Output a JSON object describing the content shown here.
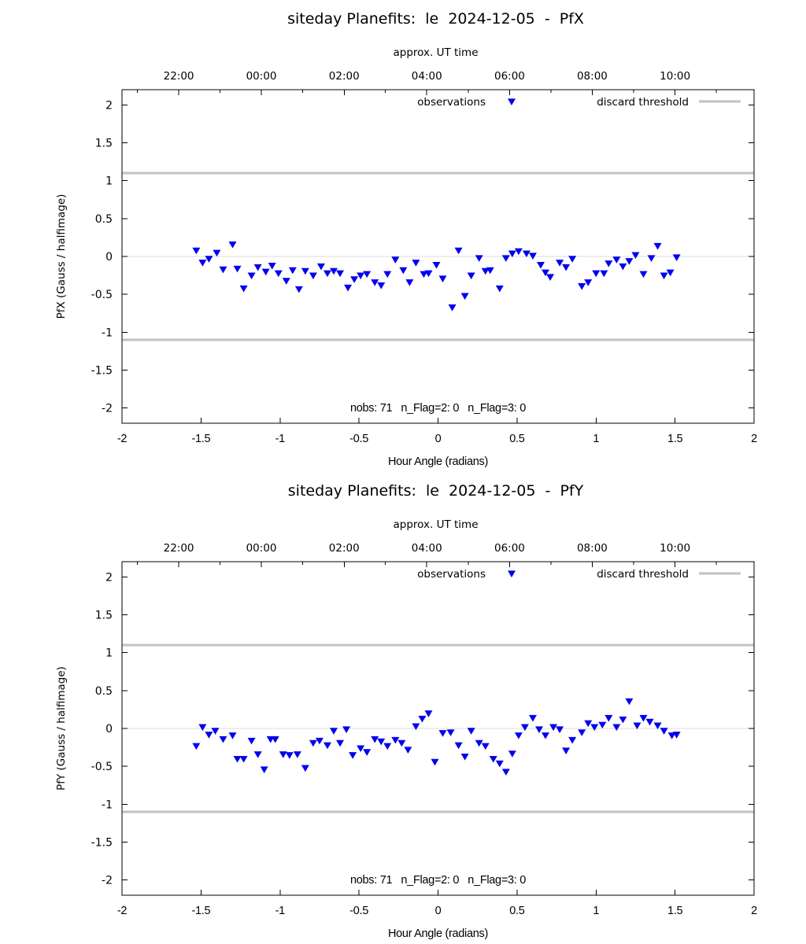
{
  "chart_data": [
    {
      "type": "scatter",
      "title": "siteday Planefits:  le  2024-12-05  -  PfX",
      "top_axis_label": "approx. UT time",
      "xlabel": "Hour Angle (radians)",
      "ylabel": "PfX (Gauss / halfimage)",
      "annotation": "nobs: 71   n_Flag=2: 0   n_Flag=3: 0",
      "legend": [
        {
          "label": "observations",
          "type": "marker"
        },
        {
          "label": "discard threshold",
          "type": "line"
        }
      ],
      "xlim": [
        -2,
        2
      ],
      "ylim": [
        -2.2,
        2.2
      ],
      "xticks": [
        {
          "v": -2,
          "label": "-2"
        },
        {
          "v": -1.5,
          "label": "-1.5"
        },
        {
          "v": -1,
          "label": "-1"
        },
        {
          "v": -0.5,
          "label": "-0.5"
        },
        {
          "v": 0,
          "label": "0"
        },
        {
          "v": 0.5,
          "label": "0.5"
        },
        {
          "v": 1,
          "label": "1"
        },
        {
          "v": 1.5,
          "label": "1.5"
        },
        {
          "v": 2,
          "label": "2"
        }
      ],
      "yticks": [
        {
          "v": 2,
          "label": "2"
        },
        {
          "v": 1.5,
          "label": "1.5"
        },
        {
          "v": 1,
          "label": "1"
        },
        {
          "v": 0.5,
          "label": "0.5"
        },
        {
          "v": 0,
          "label": "0"
        },
        {
          "v": -0.5,
          "label": "-0.5"
        },
        {
          "v": -1,
          "label": "-1"
        },
        {
          "v": -1.5,
          "label": "-1.5"
        },
        {
          "v": -2,
          "label": "-2"
        }
      ],
      "top_ticks": [
        {
          "x": -1.641,
          "label": "22:00"
        },
        {
          "x": -1.118,
          "label": "00:00"
        },
        {
          "x": -0.594,
          "label": "02:00"
        },
        {
          "x": -0.071,
          "label": "04:00"
        },
        {
          "x": 0.453,
          "label": "06:00"
        },
        {
          "x": 0.976,
          "label": "08:00"
        },
        {
          "x": 1.5,
          "label": "10:00"
        }
      ],
      "top_minor_ticks": [
        -1.903,
        -1.38,
        -0.856,
        -0.333,
        0.191,
        0.714,
        1.238,
        1.762
      ],
      "discard_threshold": 1.1,
      "zero_line": 0,
      "marker_color": "#0000ee",
      "threshold_color": "#c2c2c2",
      "zero_line_color": "#dcdcdc",
      "series": [
        {
          "name": "observations",
          "points": [
            [
              -1.53,
              0.08
            ],
            [
              -1.49,
              -0.08
            ],
            [
              -1.45,
              -0.03
            ],
            [
              -1.4,
              0.05
            ],
            [
              -1.36,
              -0.17
            ],
            [
              -1.3,
              0.16
            ],
            [
              -1.27,
              -0.16
            ],
            [
              -1.23,
              -0.42
            ],
            [
              -1.18,
              -0.25
            ],
            [
              -1.14,
              -0.14
            ],
            [
              -1.09,
              -0.2
            ],
            [
              -1.05,
              -0.12
            ],
            [
              -1.01,
              -0.22
            ],
            [
              -0.96,
              -0.32
            ],
            [
              -0.92,
              -0.18
            ],
            [
              -0.88,
              -0.43
            ],
            [
              -0.84,
              -0.19
            ],
            [
              -0.79,
              -0.25
            ],
            [
              -0.74,
              -0.13
            ],
            [
              -0.7,
              -0.22
            ],
            [
              -0.66,
              -0.19
            ],
            [
              -0.62,
              -0.22
            ],
            [
              -0.57,
              -0.41
            ],
            [
              -0.53,
              -0.3
            ],
            [
              -0.49,
              -0.25
            ],
            [
              -0.45,
              -0.23
            ],
            [
              -0.4,
              -0.34
            ],
            [
              -0.36,
              -0.38
            ],
            [
              -0.32,
              -0.23
            ],
            [
              -0.27,
              -0.04
            ],
            [
              -0.22,
              -0.18
            ],
            [
              -0.18,
              -0.34
            ],
            [
              -0.14,
              -0.08
            ],
            [
              -0.09,
              -0.23
            ],
            [
              -0.06,
              -0.22
            ],
            [
              -0.01,
              -0.11
            ],
            [
              0.03,
              -0.29
            ],
            [
              0.09,
              -0.67
            ],
            [
              0.13,
              0.08
            ],
            [
              0.17,
              -0.52
            ],
            [
              0.21,
              -0.25
            ],
            [
              0.26,
              -0.02
            ],
            [
              0.3,
              -0.19
            ],
            [
              0.33,
              -0.18
            ],
            [
              0.39,
              -0.42
            ],
            [
              0.43,
              -0.02
            ],
            [
              0.47,
              0.04
            ],
            [
              0.51,
              0.07
            ],
            [
              0.56,
              0.04
            ],
            [
              0.6,
              0.01
            ],
            [
              0.65,
              -0.11
            ],
            [
              0.68,
              -0.21
            ],
            [
              0.71,
              -0.27
            ],
            [
              0.77,
              -0.08
            ],
            [
              0.81,
              -0.14
            ],
            [
              0.85,
              -0.03
            ],
            [
              0.91,
              -0.39
            ],
            [
              0.95,
              -0.34
            ],
            [
              1.0,
              -0.22
            ],
            [
              1.05,
              -0.22
            ],
            [
              1.08,
              -0.09
            ],
            [
              1.13,
              -0.04
            ],
            [
              1.17,
              -0.13
            ],
            [
              1.21,
              -0.06
            ],
            [
              1.25,
              0.02
            ],
            [
              1.3,
              -0.23
            ],
            [
              1.35,
              -0.02
            ],
            [
              1.39,
              0.14
            ],
            [
              1.43,
              -0.25
            ],
            [
              1.47,
              -0.21
            ],
            [
              1.51,
              -0.01
            ]
          ]
        }
      ]
    },
    {
      "type": "scatter",
      "title": "siteday Planefits:  le  2024-12-05  -  PfY",
      "top_axis_label": "approx. UT time",
      "xlabel": "Hour Angle (radians)",
      "ylabel": "PfY (Gauss / halfimage)",
      "annotation": "nobs: 71   n_Flag=2: 0   n_Flag=3: 0",
      "legend": [
        {
          "label": "observations",
          "type": "marker"
        },
        {
          "label": "discard threshold",
          "type": "line"
        }
      ],
      "xlim": [
        -2,
        2
      ],
      "ylim": [
        -2.2,
        2.2
      ],
      "xticks": [
        {
          "v": -2,
          "label": "-2"
        },
        {
          "v": -1.5,
          "label": "-1.5"
        },
        {
          "v": -1,
          "label": "-1"
        },
        {
          "v": -0.5,
          "label": "-0.5"
        },
        {
          "v": 0,
          "label": "0"
        },
        {
          "v": 0.5,
          "label": "0.5"
        },
        {
          "v": 1,
          "label": "1"
        },
        {
          "v": 1.5,
          "label": "1.5"
        },
        {
          "v": 2,
          "label": "2"
        }
      ],
      "yticks": [
        {
          "v": 2,
          "label": "2"
        },
        {
          "v": 1.5,
          "label": "1.5"
        },
        {
          "v": 1,
          "label": "1"
        },
        {
          "v": 0.5,
          "label": "0.5"
        },
        {
          "v": 0,
          "label": "0"
        },
        {
          "v": -0.5,
          "label": "-0.5"
        },
        {
          "v": -1,
          "label": "-1"
        },
        {
          "v": -1.5,
          "label": "-1.5"
        },
        {
          "v": -2,
          "label": "-2"
        }
      ],
      "top_ticks": [
        {
          "x": -1.641,
          "label": "22:00"
        },
        {
          "x": -1.118,
          "label": "00:00"
        },
        {
          "x": -0.594,
          "label": "02:00"
        },
        {
          "x": -0.071,
          "label": "04:00"
        },
        {
          "x": 0.453,
          "label": "06:00"
        },
        {
          "x": 0.976,
          "label": "08:00"
        },
        {
          "x": 1.5,
          "label": "10:00"
        }
      ],
      "top_minor_ticks": [
        -1.903,
        -1.38,
        -0.856,
        -0.333,
        0.191,
        0.714,
        1.238,
        1.762
      ],
      "discard_threshold": 1.1,
      "zero_line": 0,
      "marker_color": "#0000ee",
      "threshold_color": "#c2c2c2",
      "zero_line_color": "#dcdcdc",
      "series": [
        {
          "name": "observations",
          "points": [
            [
              -1.53,
              -0.23
            ],
            [
              -1.49,
              0.02
            ],
            [
              -1.45,
              -0.08
            ],
            [
              -1.41,
              -0.03
            ],
            [
              -1.36,
              -0.14
            ],
            [
              -1.3,
              -0.09
            ],
            [
              -1.27,
              -0.4
            ],
            [
              -1.23,
              -0.4
            ],
            [
              -1.18,
              -0.16
            ],
            [
              -1.14,
              -0.34
            ],
            [
              -1.1,
              -0.54
            ],
            [
              -1.06,
              -0.14
            ],
            [
              -1.03,
              -0.14
            ],
            [
              -0.98,
              -0.34
            ],
            [
              -0.94,
              -0.35
            ],
            [
              -0.89,
              -0.34
            ],
            [
              -0.84,
              -0.52
            ],
            [
              -0.79,
              -0.19
            ],
            [
              -0.75,
              -0.16
            ],
            [
              -0.7,
              -0.22
            ],
            [
              -0.66,
              -0.03
            ],
            [
              -0.62,
              -0.19
            ],
            [
              -0.58,
              -0.01
            ],
            [
              -0.54,
              -0.35
            ],
            [
              -0.49,
              -0.26
            ],
            [
              -0.45,
              -0.31
            ],
            [
              -0.4,
              -0.14
            ],
            [
              -0.36,
              -0.17
            ],
            [
              -0.32,
              -0.23
            ],
            [
              -0.27,
              -0.15
            ],
            [
              -0.23,
              -0.19
            ],
            [
              -0.19,
              -0.28
            ],
            [
              -0.14,
              0.03
            ],
            [
              -0.1,
              0.13
            ],
            [
              -0.06,
              0.2
            ],
            [
              -0.02,
              -0.44
            ],
            [
              0.03,
              -0.06
            ],
            [
              0.08,
              -0.05
            ],
            [
              0.13,
              -0.22
            ],
            [
              0.17,
              -0.37
            ],
            [
              0.21,
              -0.03
            ],
            [
              0.26,
              -0.19
            ],
            [
              0.3,
              -0.23
            ],
            [
              0.35,
              -0.4
            ],
            [
              0.39,
              -0.46
            ],
            [
              0.43,
              -0.57
            ],
            [
              0.47,
              -0.33
            ],
            [
              0.51,
              -0.09
            ],
            [
              0.55,
              0.02
            ],
            [
              0.6,
              0.14
            ],
            [
              0.64,
              -0.01
            ],
            [
              0.68,
              -0.09
            ],
            [
              0.73,
              0.02
            ],
            [
              0.77,
              -0.01
            ],
            [
              0.81,
              -0.29
            ],
            [
              0.85,
              -0.15
            ],
            [
              0.91,
              -0.05
            ],
            [
              0.95,
              0.07
            ],
            [
              0.99,
              0.02
            ],
            [
              1.04,
              0.05
            ],
            [
              1.08,
              0.14
            ],
            [
              1.13,
              0.02
            ],
            [
              1.17,
              0.12
            ],
            [
              1.21,
              0.36
            ],
            [
              1.26,
              0.04
            ],
            [
              1.3,
              0.14
            ],
            [
              1.34,
              0.09
            ],
            [
              1.39,
              0.04
            ],
            [
              1.43,
              -0.03
            ],
            [
              1.48,
              -0.09
            ],
            [
              1.51,
              -0.08
            ]
          ]
        }
      ]
    }
  ]
}
